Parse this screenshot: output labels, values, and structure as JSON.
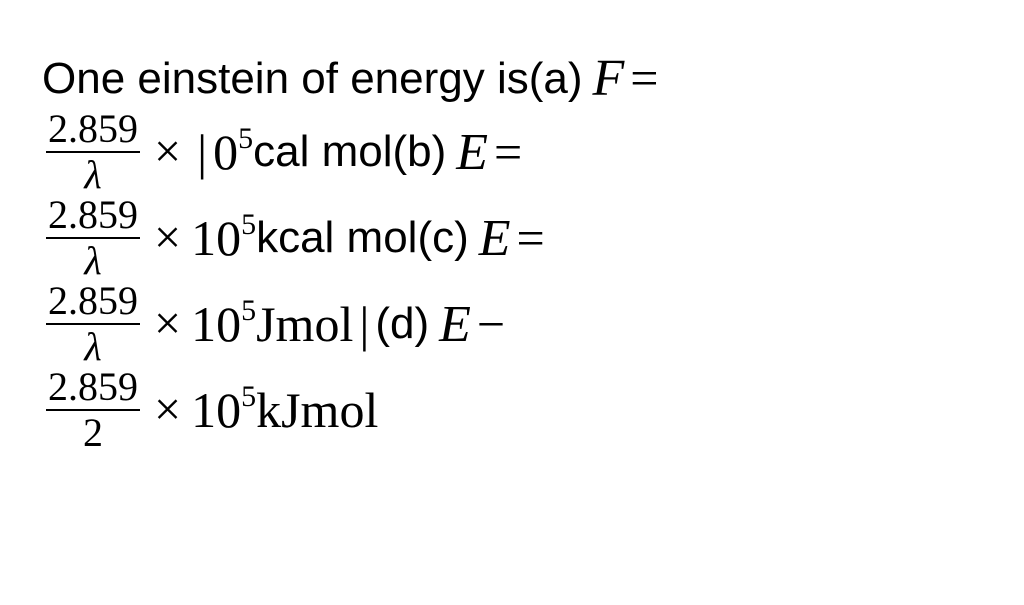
{
  "background_color": "#ffffff",
  "text_color": "#000000",
  "sans_font": "Arial",
  "serif_font": "Times New Roman",
  "base_fontsize_sans": 44,
  "base_fontsize_serif": 50,
  "fraction_fontsize": 40,
  "line1": {
    "intro": "One einstein of energy is",
    "opt_a_label": "(a) ",
    "var_F": "F",
    "eq": "="
  },
  "line2": {
    "frac_num": "2.859",
    "frac_den": "λ",
    "times": "×",
    "bar": "|",
    "zero": "0",
    "exp": "5",
    "unit": " cal mol",
    "opt_b_label": "(b) ",
    "var_E": "E",
    "eq": "="
  },
  "line3": {
    "frac_num": "2.859",
    "frac_den": "λ",
    "times": "×",
    "ten": "10",
    "exp": "5",
    "unit": " kcal mol",
    "opt_c_label": "(c) ",
    "var_E": "E",
    "eq": "="
  },
  "line4": {
    "frac_num": "2.859",
    "frac_den": "λ",
    "times": "×",
    "ten": "10",
    "exp": "5",
    "unit_j": " J",
    "unit_mol": " mol",
    "bar": "|",
    "opt_d_label": "(d) ",
    "var_E": "E",
    "minus": "−"
  },
  "line5": {
    "frac_num": "2.859",
    "frac_den": "2",
    "times": "×",
    "ten": "10",
    "exp": "5",
    "unit_kj": " kJ",
    "unit_mol": " mol"
  }
}
